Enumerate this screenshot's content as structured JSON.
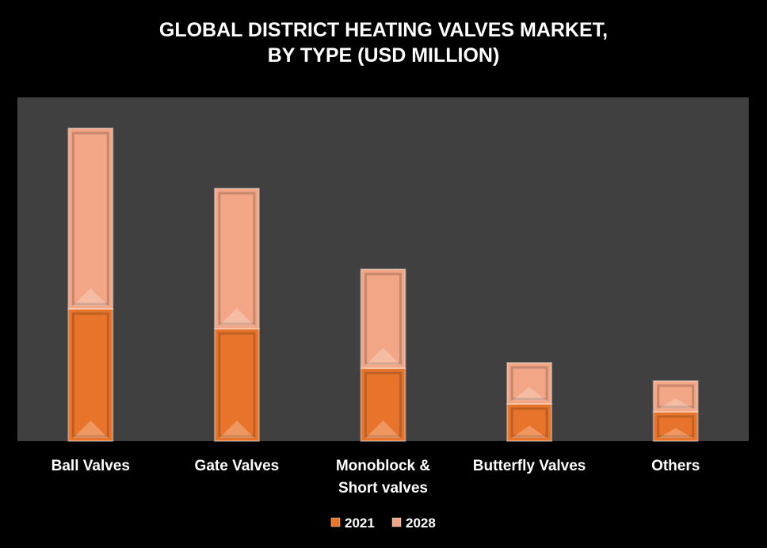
{
  "chart_data": {
    "type": "stacked_bar",
    "title": "GLOBAL DISTRICT HEATING VALVES MARKET,\nBY TYPE (USD MILLION)",
    "categories": [
      "Ball Valves",
      "Gate Valves",
      "Monoblock &\nShort valves",
      "Butterfly Valves",
      "Others"
    ],
    "series": [
      {
        "name": "2021",
        "color": "#e8742c",
        "values": [
          167,
          142,
          92,
          47,
          37
        ]
      },
      {
        "name": "2028",
        "color": "#f2a686",
        "values": [
          228,
          177,
          125,
          52,
          39
        ]
      }
    ],
    "legend": "bottom"
  }
}
